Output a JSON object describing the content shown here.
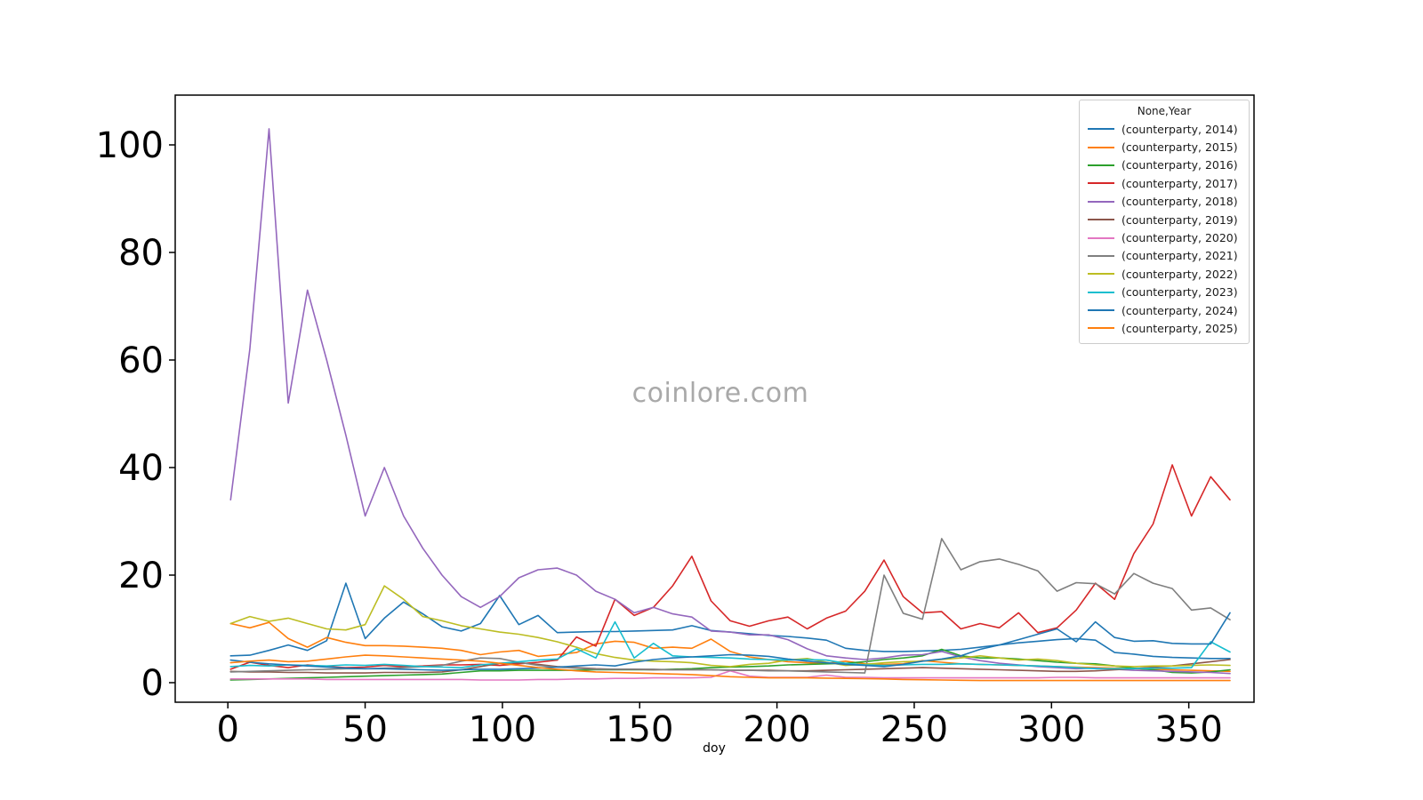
{
  "watermark": {
    "text": "coinlore.com"
  },
  "axes": {
    "xlabel": "doy",
    "x_ticks": [
      0,
      50,
      100,
      150,
      200,
      250,
      300,
      350
    ],
    "y_ticks": [
      0,
      20,
      40,
      60,
      80,
      100
    ]
  },
  "legend": {
    "title": "None,Year",
    "position": "upper right"
  },
  "chart_data": {
    "type": "line",
    "title": "",
    "xlabel": "doy",
    "ylabel": "",
    "grid": false,
    "xlim": [
      -19,
      374
    ],
    "ylim": [
      -3.6,
      109.3
    ],
    "legend_title": "None,Year",
    "legend_position": "upper right",
    "x": [
      1,
      8,
      15,
      22,
      29,
      36,
      43,
      50,
      57,
      64,
      71,
      78,
      85,
      92,
      99,
      106,
      113,
      120,
      127,
      134,
      141,
      148,
      155,
      162,
      169,
      176,
      183,
      190,
      197,
      204,
      211,
      218,
      225,
      232,
      239,
      246,
      253,
      260,
      267,
      274,
      281,
      288,
      295,
      302,
      309,
      316,
      323,
      330,
      337,
      344,
      351,
      358,
      365
    ],
    "series": [
      {
        "name": "(counterparty, 2014)",
        "color": "#1f77b4",
        "values": [
          5,
          5.1,
          6,
          7,
          6,
          7.8,
          18.5,
          8.2,
          12,
          15,
          12.8,
          10.4,
          9.6,
          11,
          16.2,
          10.8,
          12.5,
          9.3,
          9.4,
          9.5,
          9.5,
          9.6,
          9.7,
          9.8,
          10.6,
          9.7,
          9.4,
          9.1,
          8.8,
          8.6,
          8.3,
          7.9,
          6.4,
          6,
          5.8,
          5.8,
          5.9,
          6,
          6.2,
          6.6,
          7,
          7.4,
          7.7,
          8,
          8.2,
          7.9,
          5.6,
          5.3,
          4.9,
          4.7,
          4.6,
          4.5,
          4.5
        ]
      },
      {
        "name": "(counterparty, 2015)",
        "color": "#ff7f0e",
        "values": [
          11,
          10.2,
          11.2,
          8.2,
          6.6,
          8.4,
          7.5,
          6.9,
          6.9,
          6.8,
          6.6,
          6.4,
          6,
          5.2,
          5.7,
          6,
          4.9,
          5.2,
          5.6,
          7.2,
          7.7,
          7.5,
          6.4,
          6.6,
          6.4,
          8.1,
          5.8,
          4.8,
          4.3,
          3.9,
          3.7,
          3.6,
          4,
          3.5,
          3.4,
          3.5,
          4.1,
          3.8,
          3.5,
          3.4,
          3.3,
          3.2,
          3.1,
          3,
          2.9,
          2.8,
          2.7,
          2.6,
          2.5,
          2.4,
          2.3,
          2.2,
          2.1
        ]
      },
      {
        "name": "(counterparty, 2016)",
        "color": "#2ca02c",
        "values": [
          0.5,
          0.6,
          0.7,
          0.8,
          0.9,
          1,
          1.1,
          1.2,
          1.3,
          1.4,
          1.5,
          1.6,
          1.9,
          2.2,
          2.2,
          2.3,
          2.3,
          2.3,
          2.3,
          2.4,
          2.4,
          2.4,
          2.4,
          2.5,
          2.6,
          2.8,
          2.9,
          3,
          3.1,
          3.3,
          3.4,
          3.5,
          3.6,
          3.9,
          4.3,
          4.6,
          5,
          6.2,
          5,
          4.6,
          4.6,
          4.4,
          4.1,
          3.8,
          3.6,
          3.5,
          3.1,
          2.7,
          2.4,
          1.9,
          1.8,
          2,
          2.4
        ]
      },
      {
        "name": "(counterparty, 2017)",
        "color": "#d62728",
        "values": [
          2.5,
          3.8,
          3.2,
          2.8,
          3.3,
          3,
          2.8,
          2.9,
          3.2,
          3,
          3.1,
          3.3,
          3.3,
          3.4,
          3.2,
          3.5,
          3.8,
          4.2,
          8.5,
          6.8,
          15.5,
          12.5,
          14,
          18,
          23.5,
          15.2,
          11.5,
          10.5,
          11.5,
          12.2,
          10,
          12,
          13.3,
          17,
          22.8,
          16,
          13,
          13.2,
          10,
          11,
          10.2,
          13,
          9.3,
          10.2,
          13.5,
          18.5,
          15.5,
          24,
          29.5,
          40.5,
          31,
          38.3,
          34
        ]
      },
      {
        "name": "(counterparty, 2018)",
        "color": "#9467bd",
        "values": [
          34,
          62,
          103,
          52,
          73,
          60,
          46,
          31,
          40,
          31,
          25,
          20,
          16,
          14,
          16,
          19.5,
          21,
          21.3,
          20,
          17,
          15.5,
          13,
          14,
          12.8,
          12.2,
          9.6,
          9.4,
          8.9,
          8.9,
          8,
          6.3,
          5,
          4.6,
          4.3,
          4.6,
          5.1,
          5.2,
          5.8,
          4.8,
          4.1,
          3.6,
          3.3,
          3,
          2.8,
          2.6,
          2.7,
          2.5,
          2.3,
          2.2,
          2.1,
          2,
          1.9,
          1.7
        ]
      },
      {
        "name": "(counterparty, 2019)",
        "color": "#8c564b",
        "values": [
          2.1,
          2,
          2,
          1.9,
          1.9,
          1.8,
          1.8,
          1.8,
          1.9,
          1.9,
          1.9,
          2,
          2.4,
          3,
          3.6,
          3.7,
          3.4,
          3,
          2.8,
          2.6,
          2.5,
          2.5,
          2.4,
          2.4,
          2.4,
          2.4,
          2.3,
          2.3,
          2.3,
          2.2,
          2.2,
          2.3,
          2.4,
          2.5,
          2.6,
          2.7,
          2.8,
          2.7,
          2.6,
          2.5,
          2.4,
          2.3,
          2.2,
          2.1,
          2.1,
          2.2,
          2.4,
          2.6,
          2.9,
          3.1,
          3.5,
          3.9,
          4.3
        ]
      },
      {
        "name": "(counterparty, 2020)",
        "color": "#e377c2",
        "values": [
          0.7,
          0.7,
          0.7,
          0.7,
          0.7,
          0.6,
          0.6,
          0.6,
          0.6,
          0.6,
          0.6,
          0.6,
          0.6,
          0.5,
          0.5,
          0.5,
          0.6,
          0.6,
          0.7,
          0.7,
          0.8,
          0.8,
          0.9,
          0.9,
          0.9,
          1,
          2.2,
          1.2,
          1,
          1,
          1,
          1.4,
          1,
          1,
          0.9,
          0.9,
          0.9,
          0.9,
          0.9,
          0.9,
          0.9,
          0.9,
          0.9,
          1,
          1,
          0.9,
          0.9,
          0.9,
          0.9,
          0.9,
          0.9,
          0.9,
          0.9
        ]
      },
      {
        "name": "(counterparty, 2021)",
        "color": "#7f7f7f",
        "values": [
          2,
          2.1,
          2.2,
          2.3,
          2.4,
          2.5,
          2.6,
          2.6,
          2.7,
          2.8,
          3,
          3.2,
          4,
          4.6,
          4.5,
          3.8,
          3.2,
          2.9,
          2.7,
          2.5,
          2.5,
          2.5,
          2.5,
          2.4,
          2.4,
          2.4,
          2.3,
          2.3,
          2.2,
          2.2,
          2.1,
          2,
          1.9,
          1.8,
          20,
          12.9,
          11.8,
          26.8,
          21,
          22.5,
          23,
          22,
          20.8,
          17,
          18.6,
          18.4,
          16.5,
          20.3,
          18.5,
          17.5,
          13.5,
          13.9,
          11.7
        ]
      },
      {
        "name": "(counterparty, 2022)",
        "color": "#bcbd22",
        "values": [
          11,
          12.3,
          11.4,
          12,
          11,
          10,
          9.8,
          10.8,
          18,
          15.5,
          12.3,
          11.5,
          10.6,
          10,
          9.4,
          9,
          8.4,
          7.6,
          6.6,
          5.4,
          4.7,
          4.2,
          4,
          3.9,
          3.7,
          3.2,
          3,
          3.4,
          3.6,
          4.2,
          4.5,
          3.8,
          3.2,
          3.4,
          3.7,
          3.9,
          4,
          4.3,
          4.6,
          5,
          4.6,
          4.2,
          4.4,
          4.1,
          3.6,
          3.3,
          3.1,
          3,
          3.1,
          3.1,
          3.2,
          3.3,
          3.2
        ]
      },
      {
        "name": "(counterparty, 2023)",
        "color": "#17becf",
        "values": [
          3,
          3.2,
          3.1,
          3.3,
          3.2,
          3.1,
          3.3,
          3.2,
          3.4,
          3.2,
          3,
          2.9,
          2.8,
          3.3,
          3.6,
          3.9,
          4.2,
          4.4,
          6.3,
          4.6,
          11.3,
          4.6,
          7.3,
          5,
          4.8,
          4.7,
          4.6,
          4.4,
          4.3,
          4.2,
          4.3,
          4.2,
          3.6,
          3.3,
          3.2,
          3.3,
          3.4,
          3.4,
          3.5,
          3.4,
          3.3,
          3.2,
          3.1,
          3,
          2.8,
          2.6,
          2.6,
          2.6,
          2.7,
          2.7,
          2.8,
          7.6,
          5.7
        ]
      },
      {
        "name": "(counterparty, 2024)",
        "color": "#1f77b4",
        "values": [
          4.2,
          3.8,
          3.5,
          3.3,
          3.1,
          2.9,
          2.7,
          2.6,
          2.6,
          2.5,
          2.4,
          2.3,
          2.4,
          2.5,
          2.5,
          2.6,
          2.7,
          2.9,
          3.1,
          3.3,
          3.1,
          3.8,
          4.3,
          4.6,
          4.8,
          5,
          5.2,
          5.1,
          4.9,
          4.4,
          4,
          3.7,
          3.4,
          3.2,
          3,
          3.4,
          4,
          4.4,
          5,
          6.2,
          7,
          8,
          9,
          10,
          7.6,
          11.3,
          8.4,
          7.7,
          7.8,
          7.3,
          7.2,
          7.2,
          13
        ]
      },
      {
        "name": "(counterparty, 2025)",
        "color": "#ff7f0e",
        "values": [
          3.7,
          4,
          4.2,
          3.9,
          4,
          4.4,
          4.8,
          5.1,
          5,
          4.8,
          4.6,
          4.4,
          4.2,
          4,
          3.6,
          3.2,
          2.8,
          2.5,
          2.2,
          2,
          1.9,
          1.8,
          1.7,
          1.6,
          1.5,
          1.3,
          1.1,
          1,
          0.9,
          0.9,
          0.9,
          0.85,
          0.8,
          0.75,
          0.7,
          0.6,
          0.55,
          0.5,
          0.45,
          0.4,
          0.4,
          0.4,
          0.4,
          0.4,
          0.4,
          0.4,
          0.4,
          0.4,
          0.4,
          0.4,
          0.4,
          0.4,
          0.4
        ]
      }
    ]
  }
}
